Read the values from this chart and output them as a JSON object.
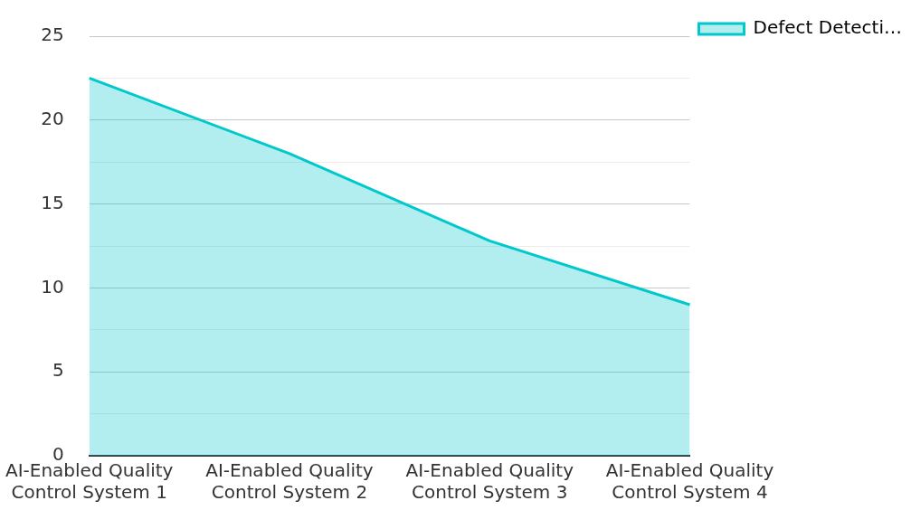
{
  "chart_data": {
    "type": "area",
    "categories": [
      "AI-Enabled Quality Control System 1",
      "AI-Enabled Quality Control System 2",
      "AI-Enabled Quality Control System 3",
      "AI-Enabled Quality Control System 4"
    ],
    "series": [
      {
        "name": "Defect Detecti…",
        "color": "#00c8cc",
        "values": [
          22.5,
          18,
          12.8,
          9
        ]
      }
    ],
    "ylim": [
      0,
      25
    ],
    "yticks": [
      0,
      {
        "value": 2.5,
        "label": null
      },
      5,
      {
        "value": 7.5,
        "label": null
      },
      10,
      {
        "value": 12.5,
        "label": null
      },
      15,
      {
        "value": 17.5,
        "label": null
      },
      20,
      {
        "value": 22.5,
        "label": null
      },
      25
    ],
    "grid": "y",
    "legend": "top right"
  }
}
